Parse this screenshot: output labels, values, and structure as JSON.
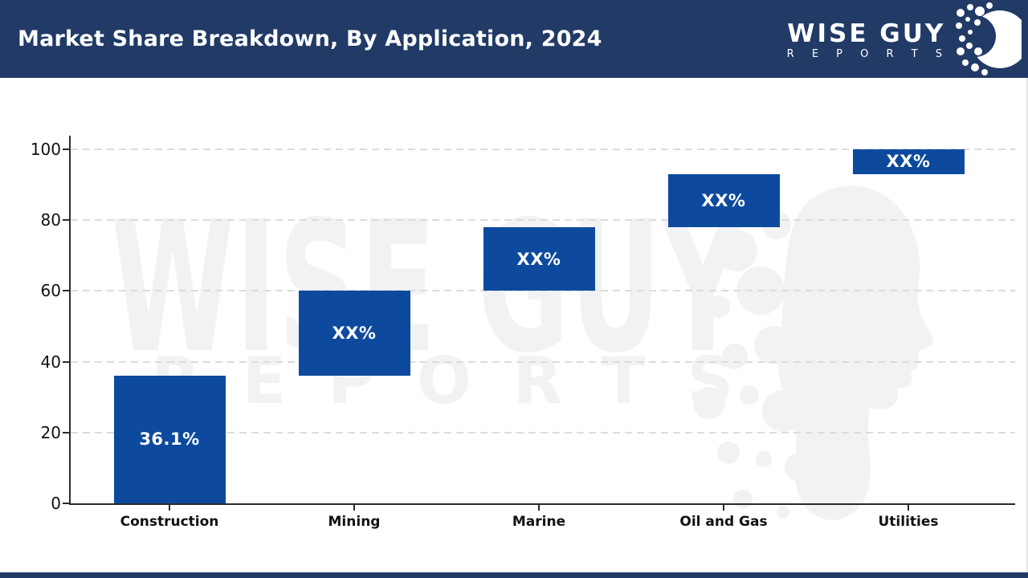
{
  "header": {
    "title": "Market Share Breakdown, By Application, 2024",
    "logo": {
      "brand": "WISE GUY",
      "sub": "R E P O R T S"
    }
  },
  "watermark": {
    "line1": "WISE GUY",
    "line2": "REPORTS"
  },
  "colors": {
    "header_bg": "#213a66",
    "bar": "#0d4a9e",
    "bar_label": "#ffffff",
    "grid": "#dcdcdc",
    "axis": "#2a2a2a",
    "tick_label": "#111111",
    "title": "#ffffff",
    "watermark": "#f1f2f4",
    "background": "#ffffff"
  },
  "chart_data": {
    "type": "waterfall",
    "title": "Market Share Breakdown, By Application, 2024",
    "categories": [
      "Construction",
      "Mining",
      "Marine",
      "Oil and Gas",
      "Utilities"
    ],
    "values": [
      36.1,
      23.9,
      18,
      15,
      7
    ],
    "cumulative_start": [
      0,
      36.1,
      60,
      78,
      93
    ],
    "cumulative_end": [
      36.1,
      60,
      78,
      93,
      100
    ],
    "bar_labels": [
      "36.1%",
      "XX%",
      "XX%",
      "XX%",
      "XX%"
    ],
    "yticks": [
      0,
      20,
      40,
      60,
      80,
      100
    ],
    "ylim": [
      0,
      105
    ],
    "grid": "horizontal-dashed",
    "legend": "none",
    "bar_color": "#0d4a9e"
  }
}
